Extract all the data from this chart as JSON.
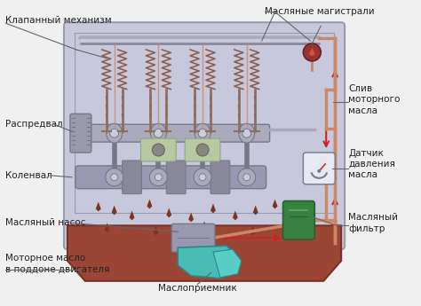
{
  "background_color": "#f0f0f0",
  "engine_body_color": "#c8c8dc",
  "engine_body_border": "#999aaa",
  "oil_pan_color": "#9B4535",
  "oil_pan_border": "#7B3025",
  "labels": {
    "valve_mechanism": "Клапанный механизм",
    "camshaft": "Распредвал",
    "crankshaft": "Коленвал",
    "oil_pump": "Масляный насос",
    "engine_oil": "Моторное масло\nв поддоне двигателя",
    "oil_receiver": "Маслоприемник",
    "oil_mains": "Масляные магистрали",
    "oil_drain": "Слив\nмоторного\nмасла",
    "pressure_sensor": "Датчик\nдавления\nмасла",
    "oil_filter": "Масляный\nфильтр"
  },
  "label_fontsize": 7.5,
  "arrow_color": "#cc2222",
  "line_color": "#666666",
  "oil_drop_color": "#7B3520",
  "spring_color": "#8B6050",
  "metal_color": "#999aaa",
  "metal_dark": "#777788",
  "crankshaft_color": "#aaaabc",
  "bearing_color": "#b8c8a0",
  "valve_stem_color": "#8B7060"
}
